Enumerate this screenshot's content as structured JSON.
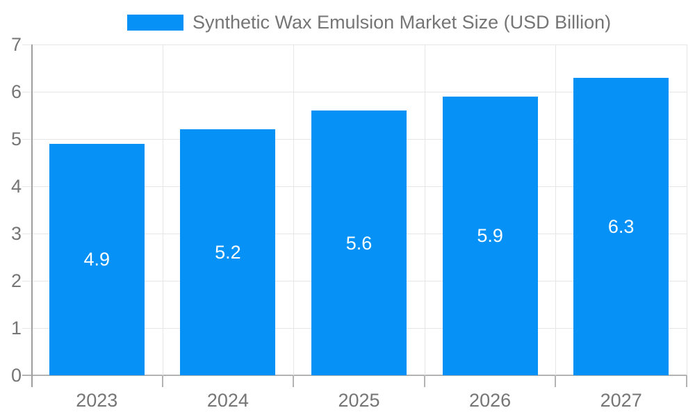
{
  "chart_data": {
    "type": "bar",
    "title": "Synthetic Wax Emulsion Market Size (USD Billion)",
    "categories": [
      "2023",
      "2024",
      "2025",
      "2026",
      "2027"
    ],
    "series": [
      {
        "name": "Synthetic Wax Emulsion Market Size (USD Billion)",
        "values": [
          4.9,
          5.2,
          5.6,
          5.9,
          6.3
        ]
      }
    ],
    "value_labels": [
      "4.9",
      "5.2",
      "5.6",
      "5.9",
      "6.3"
    ],
    "xlabel": "",
    "ylabel": "",
    "ylim": [
      0,
      7
    ],
    "y_ticks": [
      0,
      1,
      2,
      3,
      4,
      5,
      6,
      7
    ],
    "grid": true,
    "legend_position": "top",
    "bar_color": "#0691F7",
    "grid_color": "#e6e6e6",
    "axis_line_color": "#9e9e9e",
    "baseline_color": "#b3b3b3",
    "axis_text_color": "#757575",
    "value_label_color": "#ffffff"
  }
}
